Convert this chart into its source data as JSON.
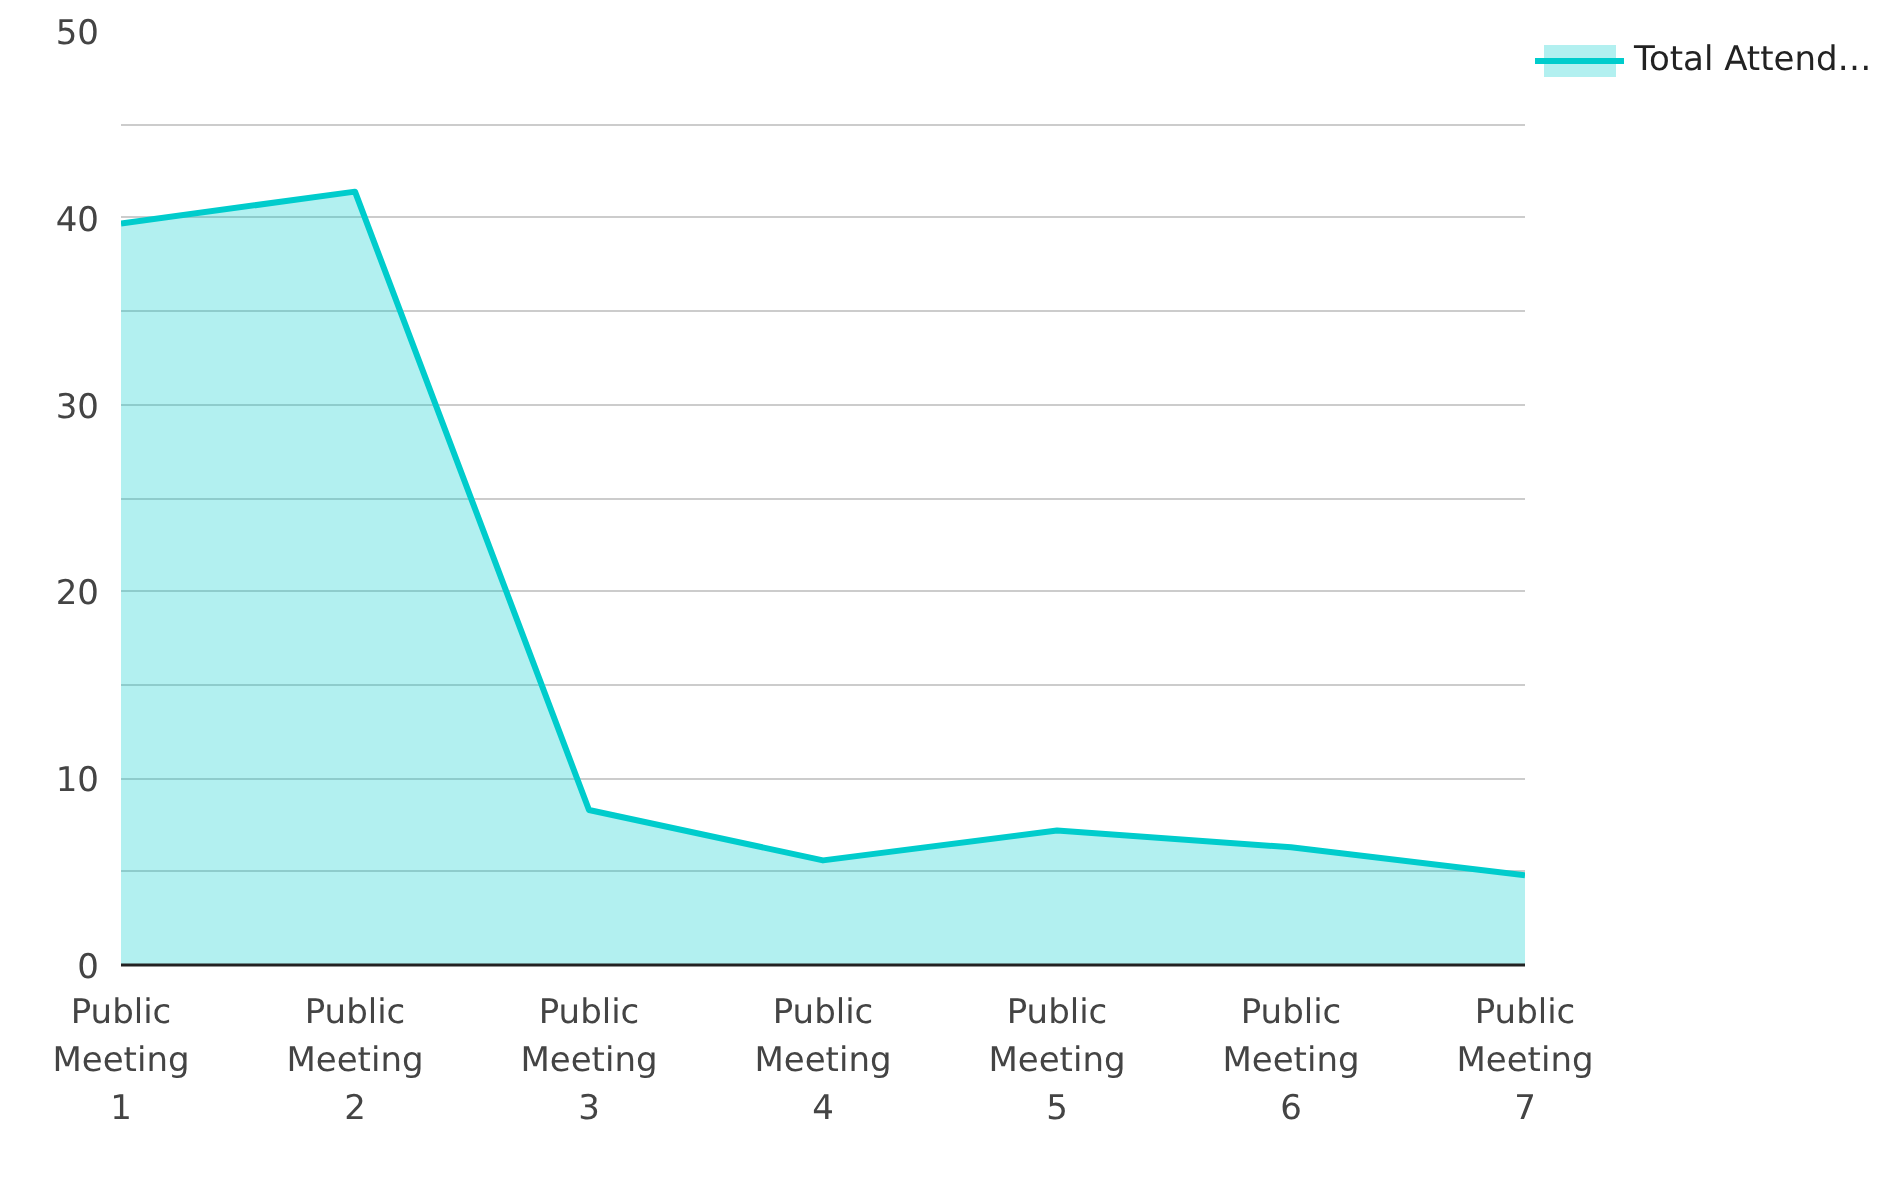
{
  "chart_data": {
    "type": "area",
    "categories": [
      "Public Meeting 1",
      "Public Meeting 2",
      "Public Meeting 3",
      "Public Meeting 4",
      "Public Meeting 5",
      "Public Meeting 6",
      "Public Meeting 7"
    ],
    "series": [
      {
        "name": "Total Attend…",
        "color": "#00cccc",
        "values": [
          39.7,
          41.4,
          8.3,
          5.6,
          7.2,
          6.3,
          4.8
        ]
      }
    ],
    "ylim": [
      0,
      50
    ],
    "yticks": [
      0,
      {
        "value": 5,
        "label": null
      },
      10,
      {
        "value": 15,
        "label": null
      },
      20,
      {
        "value": 25,
        "label": null
      },
      30,
      {
        "value": 35,
        "label": null
      },
      40,
      {
        "value": 45,
        "label": null
      },
      50
    ],
    "grid": "y",
    "legend": "top right"
  }
}
